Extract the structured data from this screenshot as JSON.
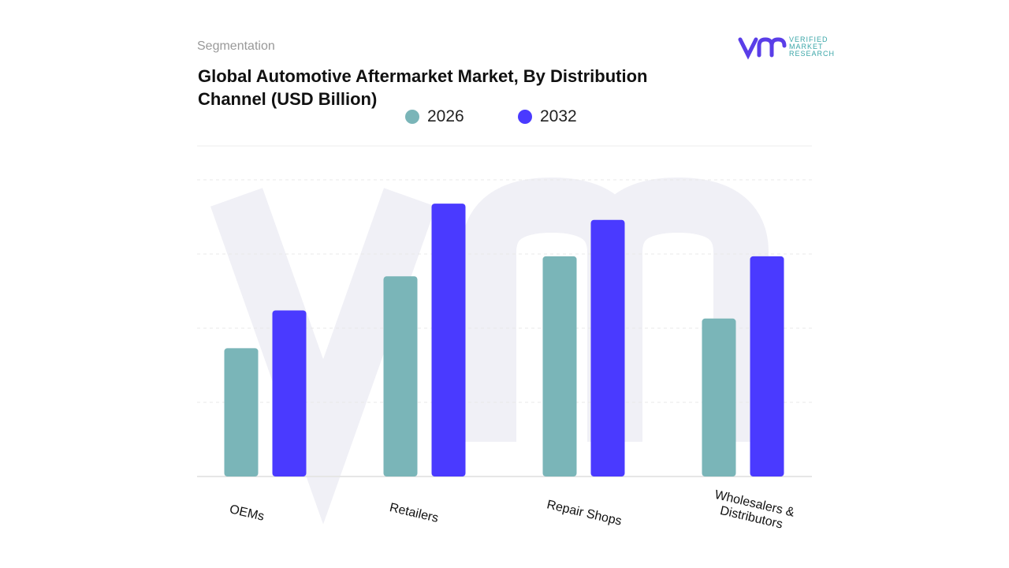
{
  "header": {
    "section": "Segmentation",
    "logo": [
      "VERIFIED",
      "MARKET",
      "RESEARCH"
    ]
  },
  "chart_data": {
    "type": "bar",
    "title": "Global Automotive Aftermarket Market, By Distribution Channel (USD Billion)",
    "categories": [
      "OEMs",
      "Retailers",
      "Repair Shops",
      "Wholesalers & Distributors"
    ],
    "series": [
      {
        "name": "2026",
        "color": "#7ab5b8",
        "values": [
          1.73,
          2.7,
          2.97,
          2.13
        ]
      },
      {
        "name": "2032",
        "color": "#4a3aff",
        "values": [
          2.24,
          3.68,
          3.46,
          2.97
        ]
      }
    ],
    "ylim": [
      0,
      4
    ],
    "yticks": [
      0,
      1,
      2,
      3,
      4
    ],
    "grid": true
  }
}
